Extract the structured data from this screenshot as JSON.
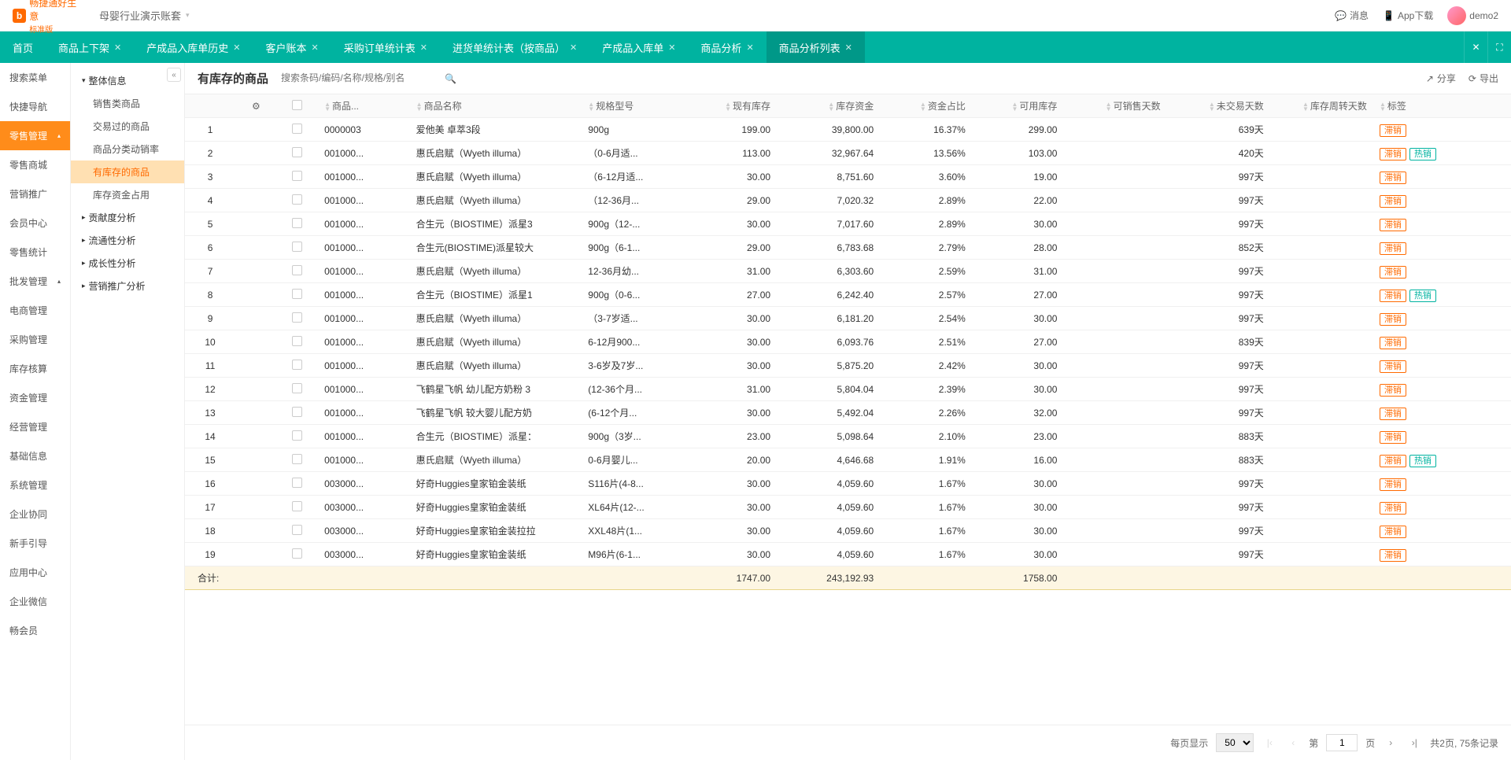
{
  "top": {
    "logo_text": "畅捷通好生意",
    "logo_sub": "标准版",
    "tenant": "母婴行业演示账套",
    "msg": "消息",
    "app": "App下载",
    "user": "demo2"
  },
  "tabs": [
    {
      "label": "首页",
      "closable": false,
      "active": false
    },
    {
      "label": "商品上下架",
      "closable": true,
      "active": false
    },
    {
      "label": "产成品入库单历史",
      "closable": true,
      "active": false
    },
    {
      "label": "客户账本",
      "closable": true,
      "active": false
    },
    {
      "label": "采购订单统计表",
      "closable": true,
      "active": false
    },
    {
      "label": "进货单统计表（按商品）",
      "closable": true,
      "active": false
    },
    {
      "label": "产成品入库单",
      "closable": true,
      "active": false
    },
    {
      "label": "商品分析",
      "closable": true,
      "active": false
    },
    {
      "label": "商品分析列表",
      "closable": true,
      "active": true
    }
  ],
  "sidebar": [
    {
      "label": "搜索菜单",
      "caret": false
    },
    {
      "label": "快捷导航",
      "caret": false
    },
    {
      "label": "零售管理",
      "caret": true,
      "active": true
    },
    {
      "label": "零售商城",
      "caret": false
    },
    {
      "label": "营销推广",
      "caret": false
    },
    {
      "label": "会员中心",
      "caret": false
    },
    {
      "label": "零售统计",
      "caret": false
    },
    {
      "label": "批发管理",
      "caret": true
    },
    {
      "label": "电商管理",
      "caret": false
    },
    {
      "label": "采购管理",
      "caret": false
    },
    {
      "label": "库存核算",
      "caret": false
    },
    {
      "label": "资金管理",
      "caret": false
    },
    {
      "label": "经营管理",
      "caret": false
    },
    {
      "label": "基础信息",
      "caret": false
    },
    {
      "label": "系统管理",
      "caret": false
    },
    {
      "label": "企业协同",
      "caret": false
    },
    {
      "label": "新手引导",
      "caret": false
    },
    {
      "label": "应用中心",
      "caret": false
    },
    {
      "label": "企业微信",
      "caret": false
    },
    {
      "label": "畅会员",
      "caret": false
    }
  ],
  "tree": {
    "group1": {
      "title": "整体信息",
      "items": [
        "销售类商品",
        "交易过的商品",
        "商品分类动销率",
        "有库存的商品",
        "库存资金占用"
      ],
      "active_index": 3
    },
    "others": [
      "贡献度分析",
      "流通性分析",
      "成长性分析",
      "营销推广分析"
    ]
  },
  "main": {
    "title": "有库存的商品",
    "search_placeholder": "搜索条码/编码/名称/规格/别名",
    "share": "分享",
    "export": "导出"
  },
  "columns": [
    "商品...",
    "商品名称",
    "规格型号",
    "现有库存",
    "库存资金",
    "资金占比",
    "可用库存",
    "可销售天数",
    "未交易天数",
    "库存周转天数",
    "标签"
  ],
  "rows": [
    {
      "idx": 1,
      "code": "0000003",
      "name": "爱他美 卓萃3段",
      "spec": "900g",
      "stock": "199.00",
      "fund": "39,800.00",
      "pct": "16.37%",
      "avail": "299.00",
      "sale": "",
      "notrade": "639天",
      "turn": "",
      "tags": [
        "滞销"
      ]
    },
    {
      "idx": 2,
      "code": "001000...",
      "name": "惠氏启赋（Wyeth illuma）",
      "spec": "（0-6月适...",
      "stock": "113.00",
      "fund": "32,967.64",
      "pct": "13.56%",
      "avail": "103.00",
      "sale": "",
      "notrade": "420天",
      "turn": "",
      "tags": [
        "滞销",
        "热销"
      ]
    },
    {
      "idx": 3,
      "code": "001000...",
      "name": "惠氏启赋（Wyeth illuma）",
      "spec": "（6-12月适...",
      "stock": "30.00",
      "fund": "8,751.60",
      "pct": "3.60%",
      "avail": "19.00",
      "sale": "",
      "notrade": "997天",
      "turn": "",
      "tags": [
        "滞销"
      ]
    },
    {
      "idx": 4,
      "code": "001000...",
      "name": "惠氏启赋（Wyeth illuma）",
      "spec": "（12-36月...",
      "stock": "29.00",
      "fund": "7,020.32",
      "pct": "2.89%",
      "avail": "22.00",
      "sale": "",
      "notrade": "997天",
      "turn": "",
      "tags": [
        "滞销"
      ]
    },
    {
      "idx": 5,
      "code": "001000...",
      "name": "合生元（BIOSTIME）派星3",
      "spec": "900g（12-...",
      "stock": "30.00",
      "fund": "7,017.60",
      "pct": "2.89%",
      "avail": "30.00",
      "sale": "",
      "notrade": "997天",
      "turn": "",
      "tags": [
        "滞销"
      ]
    },
    {
      "idx": 6,
      "code": "001000...",
      "name": "合生元(BIOSTIME)派星较大",
      "spec": "900g（6-1...",
      "stock": "29.00",
      "fund": "6,783.68",
      "pct": "2.79%",
      "avail": "28.00",
      "sale": "",
      "notrade": "852天",
      "turn": "",
      "tags": [
        "滞销"
      ]
    },
    {
      "idx": 7,
      "code": "001000...",
      "name": "惠氏启赋（Wyeth illuma）",
      "spec": "12-36月幼...",
      "stock": "31.00",
      "fund": "6,303.60",
      "pct": "2.59%",
      "avail": "31.00",
      "sale": "",
      "notrade": "997天",
      "turn": "",
      "tags": [
        "滞销"
      ]
    },
    {
      "idx": 8,
      "code": "001000...",
      "name": "合生元（BIOSTIME）派星1",
      "spec": "900g（0-6...",
      "stock": "27.00",
      "fund": "6,242.40",
      "pct": "2.57%",
      "avail": "27.00",
      "sale": "",
      "notrade": "997天",
      "turn": "",
      "tags": [
        "滞销",
        "热销"
      ]
    },
    {
      "idx": 9,
      "code": "001000...",
      "name": "惠氏启赋（Wyeth illuma）",
      "spec": "（3-7岁适...",
      "stock": "30.00",
      "fund": "6,181.20",
      "pct": "2.54%",
      "avail": "30.00",
      "sale": "",
      "notrade": "997天",
      "turn": "",
      "tags": [
        "滞销"
      ]
    },
    {
      "idx": 10,
      "code": "001000...",
      "name": "惠氏启赋（Wyeth illuma）",
      "spec": "6-12月900...",
      "stock": "30.00",
      "fund": "6,093.76",
      "pct": "2.51%",
      "avail": "27.00",
      "sale": "",
      "notrade": "839天",
      "turn": "",
      "tags": [
        "滞销"
      ]
    },
    {
      "idx": 11,
      "code": "001000...",
      "name": "惠氏启赋（Wyeth illuma）",
      "spec": "3-6岁及7岁...",
      "stock": "30.00",
      "fund": "5,875.20",
      "pct": "2.42%",
      "avail": "30.00",
      "sale": "",
      "notrade": "997天",
      "turn": "",
      "tags": [
        "滞销"
      ]
    },
    {
      "idx": 12,
      "code": "001000...",
      "name": "飞鹤星飞帆 幼儿配方奶粉 3",
      "spec": "(12-36个月...",
      "stock": "31.00",
      "fund": "5,804.04",
      "pct": "2.39%",
      "avail": "30.00",
      "sale": "",
      "notrade": "997天",
      "turn": "",
      "tags": [
        "滞销"
      ]
    },
    {
      "idx": 13,
      "code": "001000...",
      "name": "飞鹤星飞帆 较大婴儿配方奶",
      "spec": "(6-12个月...",
      "stock": "30.00",
      "fund": "5,492.04",
      "pct": "2.26%",
      "avail": "32.00",
      "sale": "",
      "notrade": "997天",
      "turn": "",
      "tags": [
        "滞销"
      ]
    },
    {
      "idx": 14,
      "code": "001000...",
      "name": "合生元（BIOSTIME）派星：",
      "spec": "900g（3岁...",
      "stock": "23.00",
      "fund": "5,098.64",
      "pct": "2.10%",
      "avail": "23.00",
      "sale": "",
      "notrade": "883天",
      "turn": "",
      "tags": [
        "滞销"
      ]
    },
    {
      "idx": 15,
      "code": "001000...",
      "name": "惠氏启赋（Wyeth illuma）",
      "spec": "0-6月婴儿...",
      "stock": "20.00",
      "fund": "4,646.68",
      "pct": "1.91%",
      "avail": "16.00",
      "sale": "",
      "notrade": "883天",
      "turn": "",
      "tags": [
        "滞销",
        "热销"
      ]
    },
    {
      "idx": 16,
      "code": "003000...",
      "name": "好奇Huggies皇家铂金装纸",
      "spec": "S116片(4-8...",
      "stock": "30.00",
      "fund": "4,059.60",
      "pct": "1.67%",
      "avail": "30.00",
      "sale": "",
      "notrade": "997天",
      "turn": "",
      "tags": [
        "滞销"
      ]
    },
    {
      "idx": 17,
      "code": "003000...",
      "name": "好奇Huggies皇家铂金装纸",
      "spec": "XL64片(12-...",
      "stock": "30.00",
      "fund": "4,059.60",
      "pct": "1.67%",
      "avail": "30.00",
      "sale": "",
      "notrade": "997天",
      "turn": "",
      "tags": [
        "滞销"
      ]
    },
    {
      "idx": 18,
      "code": "003000...",
      "name": "好奇Huggies皇家铂金装拉拉",
      "spec": "XXL48片(1...",
      "stock": "30.00",
      "fund": "4,059.60",
      "pct": "1.67%",
      "avail": "30.00",
      "sale": "",
      "notrade": "997天",
      "turn": "",
      "tags": [
        "滞销"
      ]
    },
    {
      "idx": 19,
      "code": "003000...",
      "name": "好奇Huggies皇家铂金装纸",
      "spec": "M96片(6-1...",
      "stock": "30.00",
      "fund": "4,059.60",
      "pct": "1.67%",
      "avail": "30.00",
      "sale": "",
      "notrade": "997天",
      "turn": "",
      "tags": [
        "滞销"
      ]
    }
  ],
  "totals": {
    "label": "合计:",
    "stock": "1747.00",
    "fund": "243,192.93",
    "avail": "1758.00"
  },
  "pager": {
    "per_page_label": "每页显示",
    "per_page": "50",
    "page_label_pre": "第",
    "page": "1",
    "page_label_post": "页",
    "summary": "共2页, 75条记录"
  }
}
